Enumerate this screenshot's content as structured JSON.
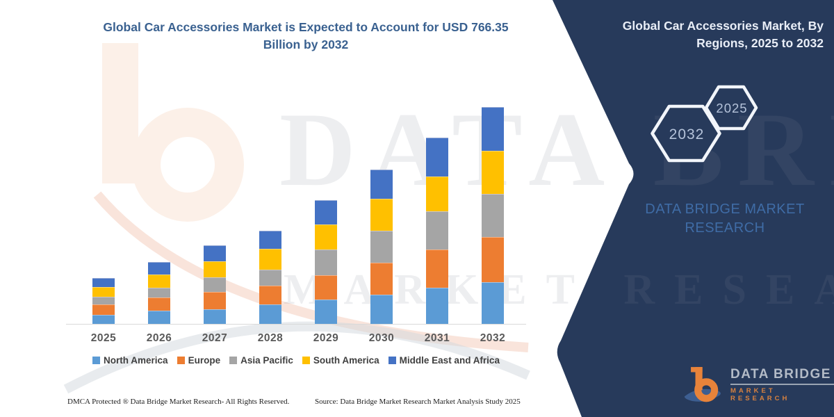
{
  "page": {
    "title_line1": "Global Car Accessories Market is Expected to Account for USD 766.35",
    "title_line2": "Billion by 2032"
  },
  "side_panel": {
    "heading_line1": "Global Car Accessories Market, By",
    "heading_line2": "Regions, 2025 to 2032",
    "hexagons": [
      {
        "label": "2032"
      },
      {
        "label": "2025"
      }
    ],
    "brand_line1": "DATA BRIDGE MARKET",
    "brand_line2": "RESEARCH"
  },
  "watermark": {
    "line1": "DATA BRIDGE",
    "line2": "MARKET RESEARCH"
  },
  "logo": {
    "name": "DATA BRIDGE",
    "subtitle": "MARKET RESEARCH"
  },
  "footer": {
    "left": "DMCA Protected ® Data Bridge Market Research-  All Rights Reserved.",
    "source": "Source: Data Bridge Market Research  Market Analysis Study 2025"
  },
  "colors": {
    "panel_navy": "#273A5B",
    "title_blue": "#3A6190",
    "brand_orange": "#E8833A",
    "brand_blue": "#3D5E91",
    "brand_text_blue": "#3F6CA6",
    "axis_gray": "#D9D9D9"
  },
  "chart_data": {
    "type": "bar",
    "stacked": true,
    "title": "Global Car Accessories Market is Expected to Account for USD 766.35 Billion by 2032",
    "unit": "USD Billion",
    "values_estimated_from_bar_heights": true,
    "grid": false,
    "legend_position": "bottom",
    "categories": [
      "2025",
      "2026",
      "2027",
      "2028",
      "2029",
      "2030",
      "2031",
      "2032"
    ],
    "series": [
      {
        "name": "North America",
        "color": "#5B9BD5",
        "values": [
          33,
          47,
          52,
          68,
          86,
          102,
          127,
          147.35
        ]
      },
      {
        "name": "Europe",
        "color": "#ED7D31",
        "values": [
          35,
          47,
          61,
          68,
          86,
          115,
          135,
          160
        ]
      },
      {
        "name": "Asia Pacific",
        "color": "#A5A5A5",
        "values": [
          27,
          33,
          52,
          55,
          90,
          111,
          135,
          152
        ]
      },
      {
        "name": "South America",
        "color": "#FFC000",
        "values": [
          34,
          47,
          55,
          74,
          90,
          115,
          123,
          152
        ]
      },
      {
        "name": "Middle East and Africa",
        "color": "#4472C4",
        "values": [
          34,
          45,
          57,
          65,
          86,
          103,
          138,
          155
        ]
      }
    ],
    "totals": [
      163,
      219,
      277,
      330,
      438,
      546,
      658,
      766.35
    ],
    "ylim": [
      0,
      790
    ],
    "xlabel": "",
    "ylabel": ""
  }
}
